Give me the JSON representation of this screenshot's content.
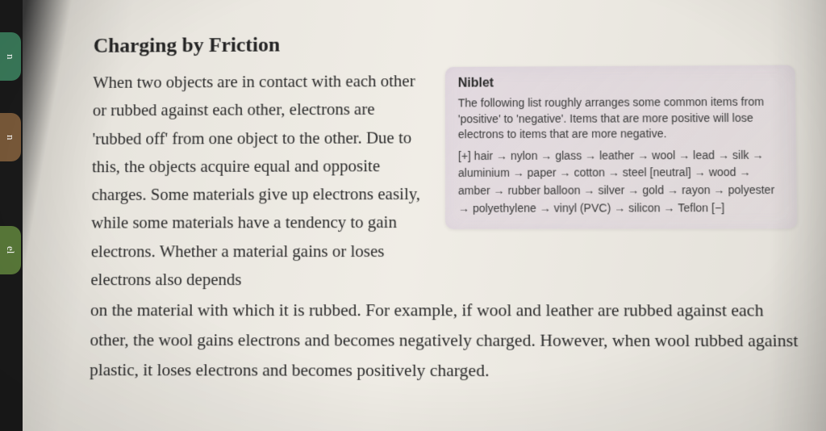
{
  "tabs": {
    "t1": "n",
    "t2": "n",
    "t3": "el"
  },
  "heading": "Charging by Friction",
  "body": {
    "p1": "When two objects are in contact with each other or rubbed against each other, electrons are 'rubbed off' from one object to the other. Due to this, the objects acquire equal and opposite charges. Some materials give up electrons easily, while some materials have a tendency to gain electrons. Whether a material gains or loses electrons also depends",
    "p2": "on the material with which it is rubbed. For example, if wool and leather are rubbed against each other, the wool gains electrons and becomes negatively charged. However, when wool rubbed against plastic, it loses electrons and becomes positively charged."
  },
  "niblet": {
    "title": "Niblet",
    "intro": "The following list roughly arranges some common items from 'positive' to 'negative'. Items that are more positive will lose electrons to items that are more negative.",
    "series": "[+] hair → nylon → glass → leather → wool → lead → silk → aluminium → paper → cotton → steel [neutral] → wood → amber → rubber balloon → silver → gold → rayon → polyester → polyethylene → vinyl (PVC) → silicon → Teflon [−]"
  },
  "colors": {
    "heading": "#252525",
    "body": "#2c2c2c",
    "niblet_bg_tint": "#cabdd4",
    "niblet_text": "#3a3a3a"
  }
}
